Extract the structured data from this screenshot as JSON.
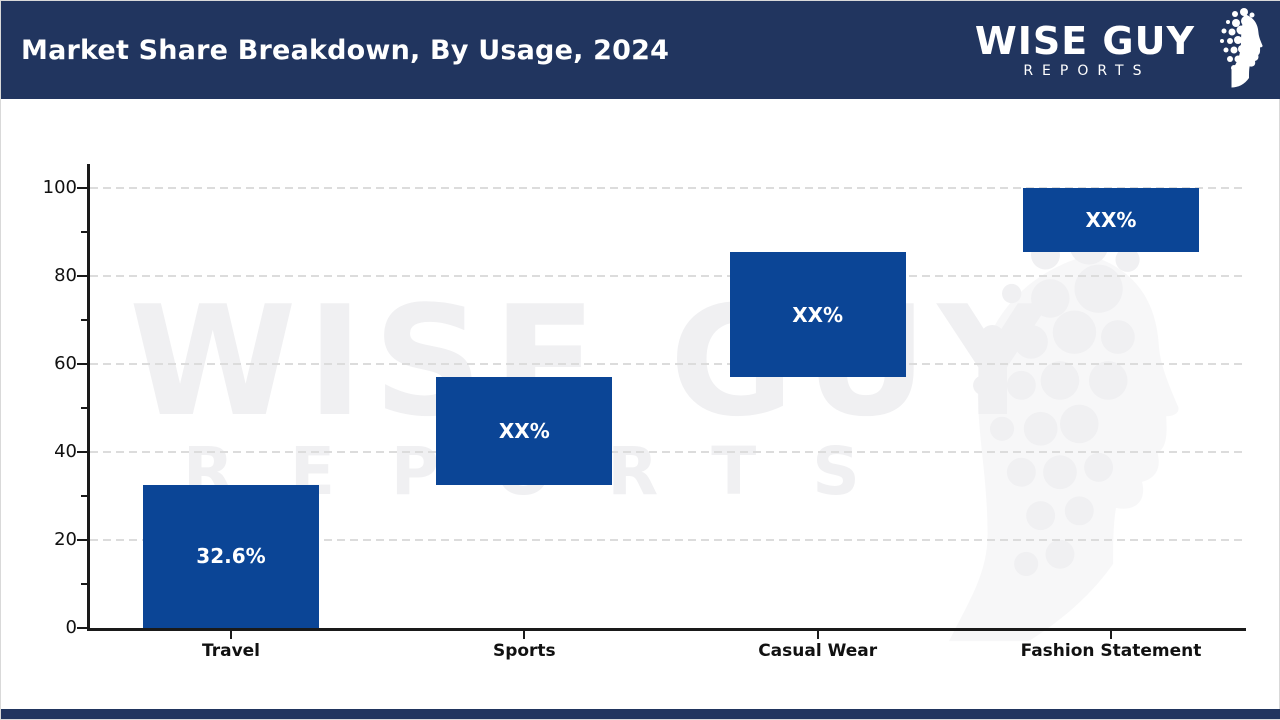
{
  "header": {
    "title": "Market Share Breakdown, By Usage, 2024",
    "brand": {
      "line1": "WISE GUY",
      "line2": "REPORTS"
    },
    "bg_color": "#21355f",
    "text_color": "#ffffff"
  },
  "watermark": {
    "line1": "WISE GUY",
    "line2": "REPORTS"
  },
  "chart_data": {
    "type": "bar",
    "subtype": "waterfall",
    "title": "Market Share Breakdown, By Usage, 2024",
    "categories": [
      "Travel",
      "Sports",
      "Casual Wear",
      "Fashion Statement"
    ],
    "segments": [
      {
        "category": "Travel",
        "start": 0,
        "end": 32.6,
        "label": "32.6%"
      },
      {
        "category": "Sports",
        "start": 32.6,
        "end": 57.0,
        "label": "XX%"
      },
      {
        "category": "Casual Wear",
        "start": 57.0,
        "end": 85.4,
        "label": "XX%"
      },
      {
        "category": "Fashion Statement",
        "start": 85.4,
        "end": 100,
        "label": "XX%"
      }
    ],
    "values_estimated": [
      32.6,
      24.4,
      28.4,
      14.6
    ],
    "xlabel": "",
    "ylabel": "",
    "ylim": [
      0,
      100
    ],
    "yticks": [
      0,
      20,
      40,
      60,
      80,
      100
    ],
    "minor_yticks": [
      10,
      30,
      50,
      70,
      90
    ],
    "grid": "dashed horizontal",
    "legend": "none",
    "bar_color": "#0b4596",
    "bar_label_color": "#ffffff",
    "axis_color": "#1a1a1a",
    "grid_color": "#dcdcdc"
  },
  "footer": {
    "bg_color": "#21355f"
  }
}
